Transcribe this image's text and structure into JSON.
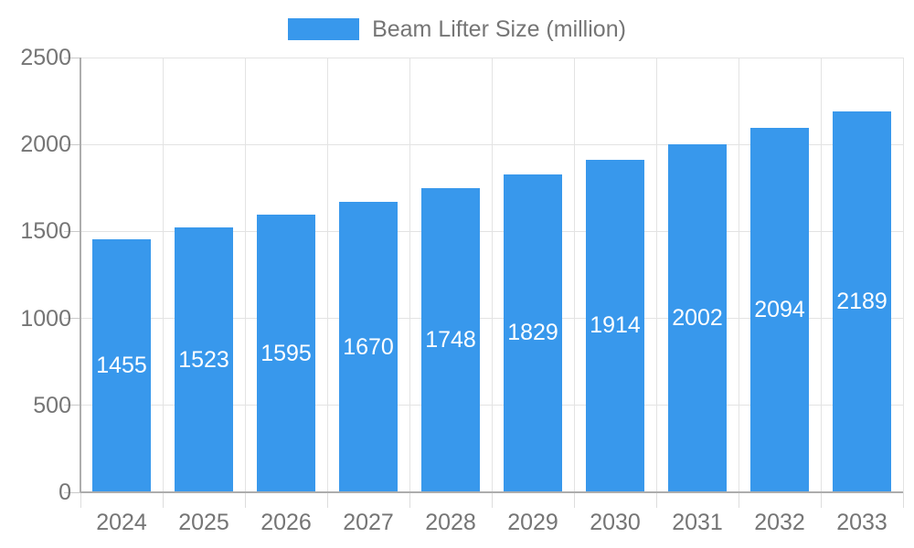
{
  "legend": {
    "label": "Beam Lifter Size (million)"
  },
  "colors": {
    "bar": "#3898EC",
    "bar_label": "#FFFFFF",
    "axis_label": "#757575",
    "legend_label": "#757575",
    "grid": "#E3E3E3",
    "axis_line": "#ADADAD",
    "y_tick": "#C9C9C9",
    "x_tick": "#DDDDDD"
  },
  "chart_data": {
    "type": "bar",
    "title": "Beam Lifter Size (million)",
    "series_name": "Beam Lifter Size (million)",
    "categories": [
      "2024",
      "2025",
      "2026",
      "2027",
      "2028",
      "2029",
      "2030",
      "2031",
      "2032",
      "2033"
    ],
    "values": [
      1455,
      1523,
      1595,
      1670,
      1748,
      1829,
      1914,
      2002,
      2094,
      2189
    ],
    "bar_labels": [
      1455,
      1523,
      1595,
      1670,
      1748,
      1829,
      1914,
      2002,
      2094,
      2189
    ],
    "bar_label_position": "inside-center",
    "xlabel": "",
    "ylabel": "",
    "ylim": [
      0,
      2500
    ],
    "yticks": [
      0,
      500,
      1000,
      1500,
      2000,
      2500
    ],
    "grid": "on",
    "legend_position": "top-center"
  }
}
